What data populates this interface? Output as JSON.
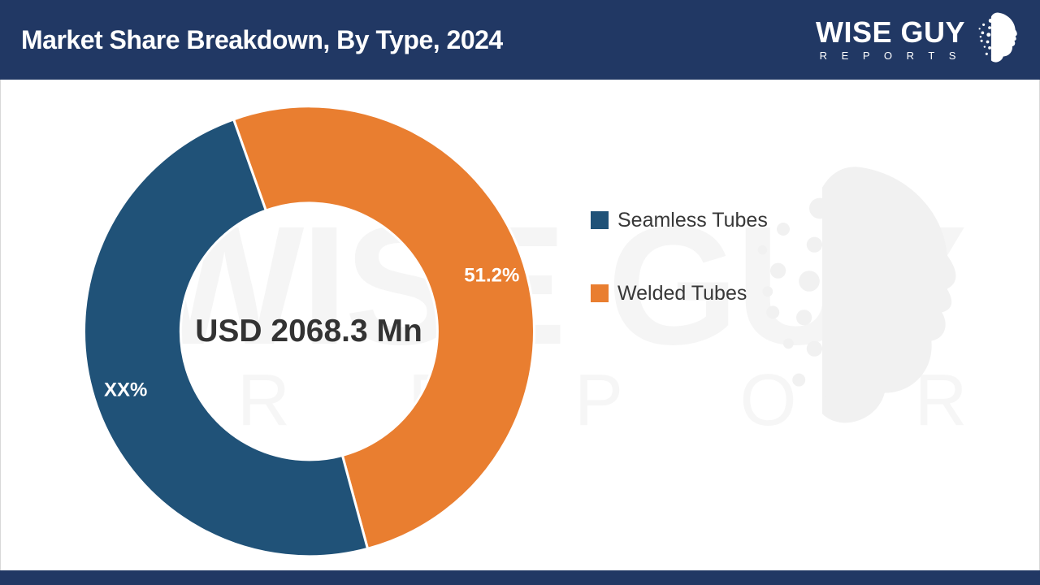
{
  "header": {
    "title": "Market Share Breakdown, By Type, 2024",
    "bg_color": "#213864",
    "logo": {
      "name": "WISE GUY",
      "tagline": "R E P O R T S"
    }
  },
  "chart_data": {
    "type": "donut",
    "title": "Market Share Breakdown, By Type, 2024",
    "center_label": "USD 2068.3 Mn",
    "start_angle_deg": -19.5,
    "donut_hole_ratio": 0.57,
    "slices": [
      {
        "name": "Welded Tubes",
        "label": "51.2%",
        "pct": 51.2,
        "color": "#e97e30"
      },
      {
        "name": "Seamless Tubes",
        "label": "XX%",
        "pct": 48.8,
        "color": "#205278"
      }
    ],
    "legend": {
      "position": "right",
      "items": [
        {
          "label": "Seamless Tubes",
          "color": "#205278"
        },
        {
          "label": "Welded Tubes",
          "color": "#e97e30"
        }
      ]
    }
  },
  "watermark": {
    "line1": "WISE GUY",
    "line2": "R E P O R T S"
  },
  "footer": {
    "bg_color": "#213864"
  }
}
